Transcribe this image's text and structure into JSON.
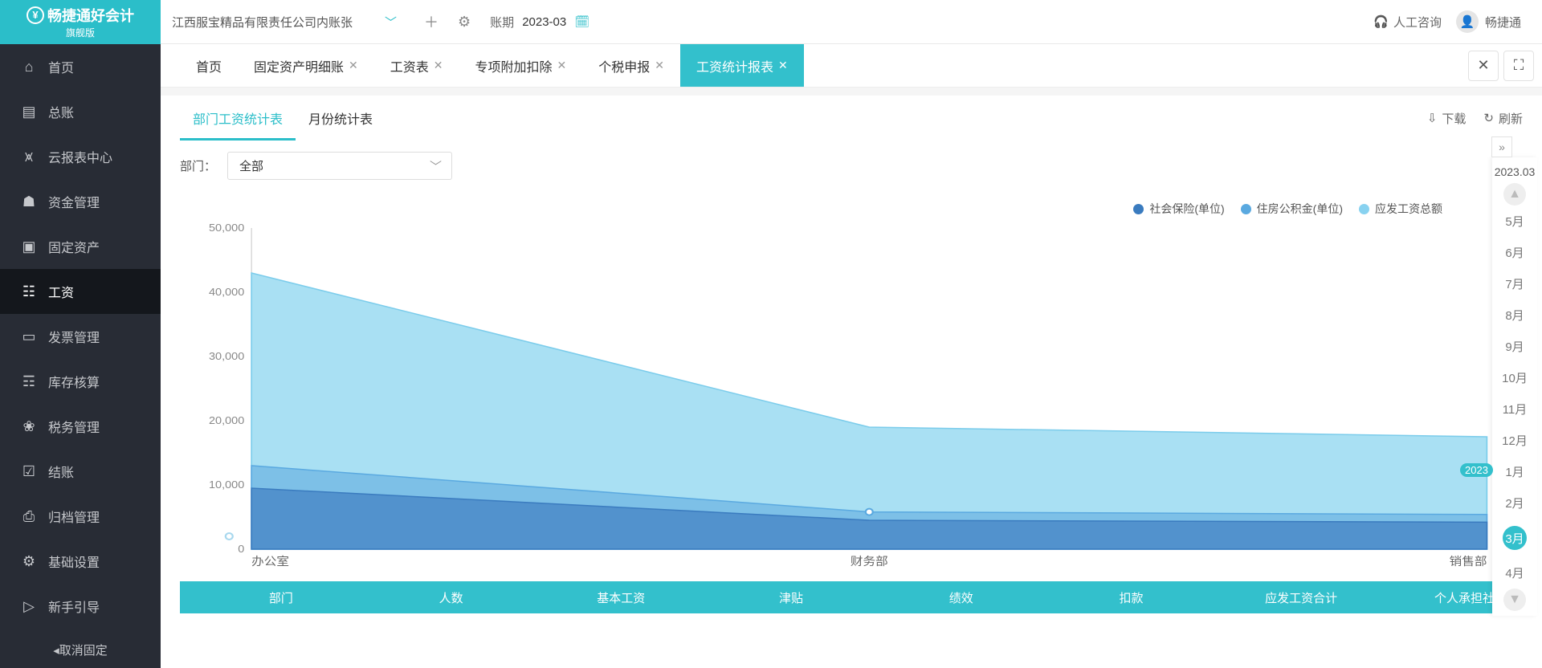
{
  "header": {
    "logo_main": "畅捷通好会计",
    "logo_sub": "旗舰版",
    "company_name": "江西服宝精品有限责任公司内账张",
    "period_label": "账期",
    "period_value": "2023-03",
    "support_label": "人工咨询",
    "user_name": "畅捷通"
  },
  "nav": [
    {
      "icon": "home-icon",
      "glyph": "⌂",
      "label": "首页"
    },
    {
      "icon": "ledger-icon",
      "glyph": "▤",
      "label": "总账"
    },
    {
      "icon": "report-icon",
      "glyph": "⩙",
      "label": "云报表中心"
    },
    {
      "icon": "fund-icon",
      "glyph": "☗",
      "label": "资金管理"
    },
    {
      "icon": "asset-icon",
      "glyph": "▣",
      "label": "固定资产"
    },
    {
      "icon": "salary-icon",
      "glyph": "☷",
      "label": "工资",
      "active": true
    },
    {
      "icon": "invoice-icon",
      "glyph": "▭",
      "label": "发票管理"
    },
    {
      "icon": "stock-icon",
      "glyph": "☶",
      "label": "库存核算"
    },
    {
      "icon": "tax-icon",
      "glyph": "❀",
      "label": "税务管理"
    },
    {
      "icon": "close-icon2",
      "glyph": "☑",
      "label": "结账"
    },
    {
      "icon": "archive-icon",
      "glyph": "⎙",
      "label": "归档管理"
    },
    {
      "icon": "settings-icon",
      "glyph": "⚙",
      "label": "基础设置"
    },
    {
      "icon": "guide-icon",
      "glyph": "▷",
      "label": "新手引导"
    }
  ],
  "nav_cancel": "◂取消固定",
  "tabs": [
    {
      "label": "首页",
      "closable": false
    },
    {
      "label": "固定资产明细账",
      "closable": true
    },
    {
      "label": "工资表",
      "closable": true
    },
    {
      "label": "专项附加扣除",
      "closable": true
    },
    {
      "label": "个税申报",
      "closable": true
    },
    {
      "label": "工资统计报表",
      "closable": true,
      "active": true
    }
  ],
  "sub_tabs": [
    {
      "label": "部门工资统计表",
      "active": true
    },
    {
      "label": "月份统计表"
    }
  ],
  "actions": {
    "download": "下载",
    "refresh": "刷新"
  },
  "filter": {
    "label": "部门：",
    "value": "全部"
  },
  "legend": [
    {
      "label": "社会保险(单位)",
      "color": "#3a7bbf"
    },
    {
      "label": "住房公积金(单位)",
      "color": "#5aa9e0"
    },
    {
      "label": "应发工资总额",
      "color": "#88d2f0"
    }
  ],
  "chart": {
    "type": "area",
    "background_color": "#ffffff",
    "axis_color": "#cccccc",
    "y_tick_color": "#888888",
    "x_tick_color": "#666666",
    "y_font_size": 13,
    "x_font_size": 14,
    "y_ticks": [
      "0",
      "10,000",
      "20,000",
      "30,000",
      "40,000",
      "50,000"
    ],
    "y_values": [
      0,
      10000,
      20000,
      30000,
      40000,
      50000
    ],
    "ylim": [
      0,
      50000
    ],
    "x_categories": [
      "办公室",
      "财务部",
      "销售部"
    ],
    "marker_radius": 4,
    "marker_stroke": "#5aa9e0",
    "series": [
      {
        "name": "应发工资总额",
        "color_fill": "#9adbf1",
        "color_stroke": "#7bcceb",
        "opacity": 0.85,
        "values": [
          43000,
          19000,
          17500
        ]
      },
      {
        "name": "住房公积金(单位)",
        "color_fill": "#6fb6e3",
        "color_stroke": "#5aa9e0",
        "opacity": 0.75,
        "values": [
          13000,
          5800,
          5400
        ]
      },
      {
        "name": "社会保险(单位)",
        "color_fill": "#4a89c8",
        "color_stroke": "#3a7bbf",
        "opacity": 0.85,
        "values": [
          9500,
          4500,
          4200
        ]
      }
    ],
    "extra_markers": [
      {
        "x_index": 2,
        "y": 17500,
        "color": "#5aa9e0"
      },
      {
        "x_index": 2,
        "y": 5400,
        "color": "#5aa9e0"
      }
    ]
  },
  "table_header": [
    "部门",
    "人数",
    "基本工资",
    "津贴",
    "绩效",
    "扣款",
    "应发工资合计"
  ],
  "table_header_last": "个人承担社保",
  "month_rail": {
    "year_head": "2023.03",
    "items": [
      "5月",
      "6月",
      "7月",
      "8月",
      "9月",
      "10月",
      "11月",
      "12月",
      "1月",
      "2月",
      "3月",
      "4月"
    ],
    "selected": "3月",
    "year_badge_on": "1月",
    "year_badge": "2023"
  }
}
